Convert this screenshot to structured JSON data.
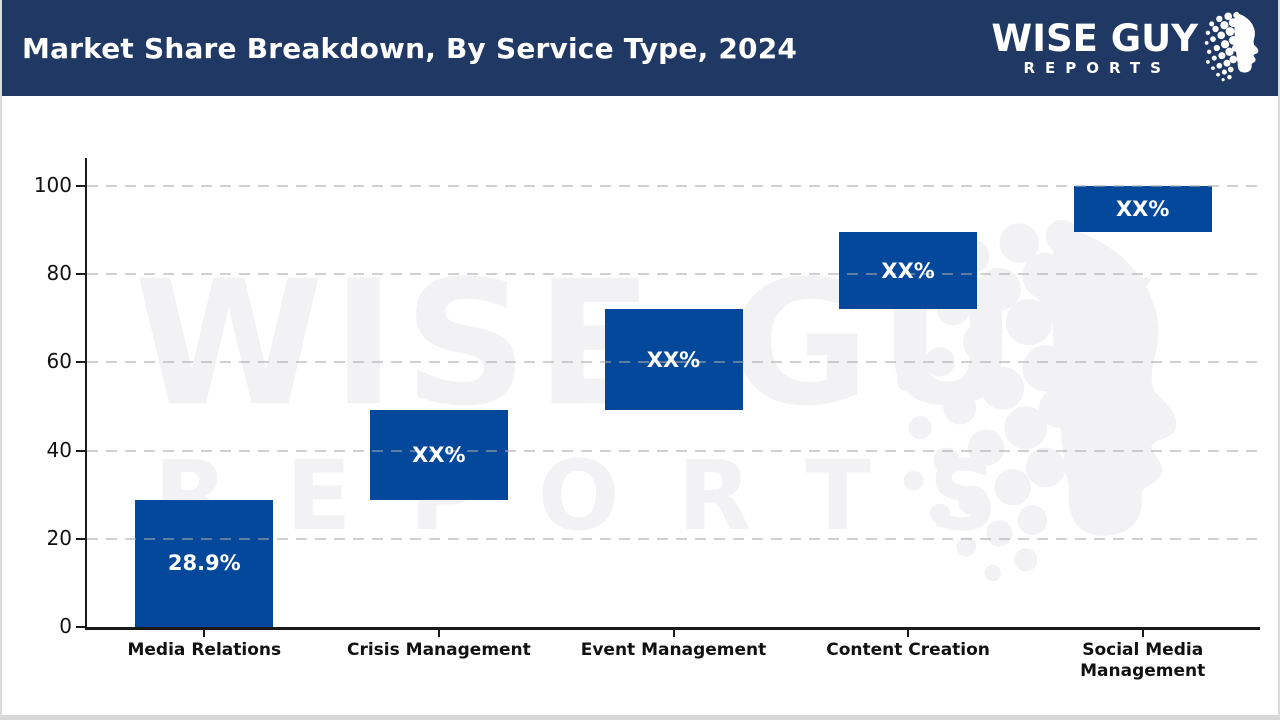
{
  "header": {
    "title": "Market Share Breakdown, By Service Type, 2024"
  },
  "logo": {
    "line1": "WISE GUY",
    "line2": "REPORTS",
    "icon": "dotted-head-profile-icon"
  },
  "watermark": {
    "line1": "WISE GUY",
    "line2": "REPORTS",
    "icon": "dotted-head-profile-icon"
  },
  "colors": {
    "header_bg": "#1F3864",
    "bar": "#04489C",
    "bar_label_text": "#FFFFFF",
    "axis": "#1A1A1A",
    "grid": "#C9C9C9",
    "watermark": "#F2F2F4",
    "title_text": "#FFFFFF"
  },
  "chart_data": {
    "type": "bar",
    "subtype": "waterfall",
    "title": "Market Share Breakdown, By Service Type, 2024",
    "xlabel": "",
    "ylabel": "",
    "categories": [
      "Media Relations",
      "Crisis Management",
      "Event Management",
      "Content Creation",
      "Social Media Management"
    ],
    "bars": [
      {
        "category": "Media Relations",
        "from": 0,
        "to": 28.9,
        "label": "28.9%"
      },
      {
        "category": "Crisis Management",
        "from": 28.9,
        "to": 49.1,
        "label": "XX%"
      },
      {
        "category": "Event Management",
        "from": 49.1,
        "to": 72.0,
        "label": "XX%"
      },
      {
        "category": "Content Creation",
        "from": 72.0,
        "to": 89.5,
        "label": "XX%"
      },
      {
        "category": "Social Media Management",
        "from": 89.5,
        "to": 100.0,
        "label": "XX%"
      }
    ],
    "yticks": [
      0,
      20,
      40,
      60,
      80,
      100
    ],
    "ylim": [
      0,
      107
    ],
    "grid": "horizontal dashed, drawn over bars",
    "legend": "none"
  }
}
